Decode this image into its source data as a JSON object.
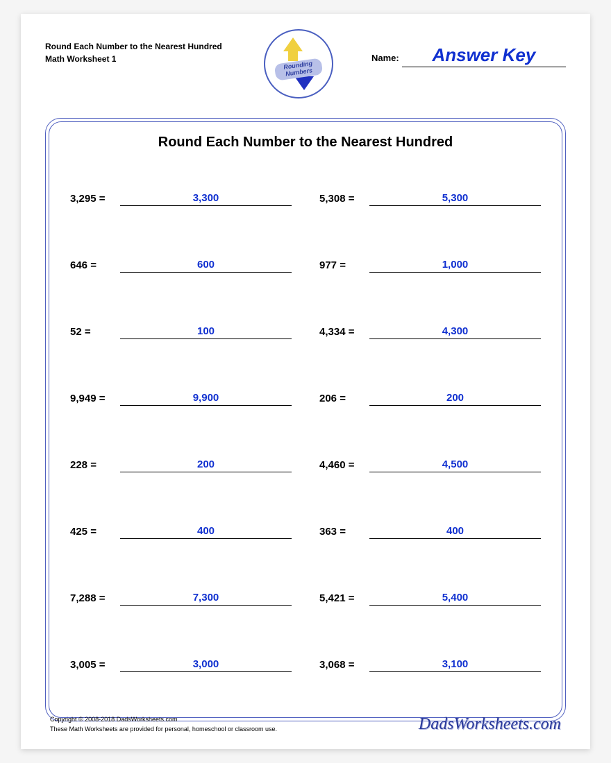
{
  "header": {
    "title_line1": "Round Each Number to the Nearest Hundred",
    "title_line2": "Math Worksheet 1",
    "logo_text": "Rounding Numbers",
    "name_label": "Name:",
    "name_value": "Answer Key"
  },
  "main": {
    "title": "Round Each Number to the Nearest Hundred",
    "problems": [
      {
        "prompt": "3,295 =",
        "answer": "3,300"
      },
      {
        "prompt": "5,308 =",
        "answer": "5,300"
      },
      {
        "prompt": "646 =",
        "answer": "600"
      },
      {
        "prompt": "977 =",
        "answer": "1,000"
      },
      {
        "prompt": "52 =",
        "answer": "100"
      },
      {
        "prompt": "4,334 =",
        "answer": "4,300"
      },
      {
        "prompt": "9,949 =",
        "answer": "9,900"
      },
      {
        "prompt": "206 =",
        "answer": "200"
      },
      {
        "prompt": "228 =",
        "answer": "200"
      },
      {
        "prompt": "4,460 =",
        "answer": "4,500"
      },
      {
        "prompt": "425 =",
        "answer": "400"
      },
      {
        "prompt": "363 =",
        "answer": "400"
      },
      {
        "prompt": "7,288 =",
        "answer": "7,300"
      },
      {
        "prompt": "5,421 =",
        "answer": "5,400"
      },
      {
        "prompt": "3,005 =",
        "answer": "3,000"
      },
      {
        "prompt": "3,068 =",
        "answer": "3,100"
      }
    ]
  },
  "footer": {
    "copyright": "Copyright © 2008-2018 DadsWorksheets.com",
    "disclaimer": "These Math Worksheets are provided for personal, homeschool or classroom use.",
    "brand": "DadsWorksheets.com"
  },
  "colors": {
    "answer_color": "#1030d0",
    "frame_color": "#5060c0",
    "logo_yellow": "#f0d040",
    "logo_blue": "#2030c0"
  }
}
